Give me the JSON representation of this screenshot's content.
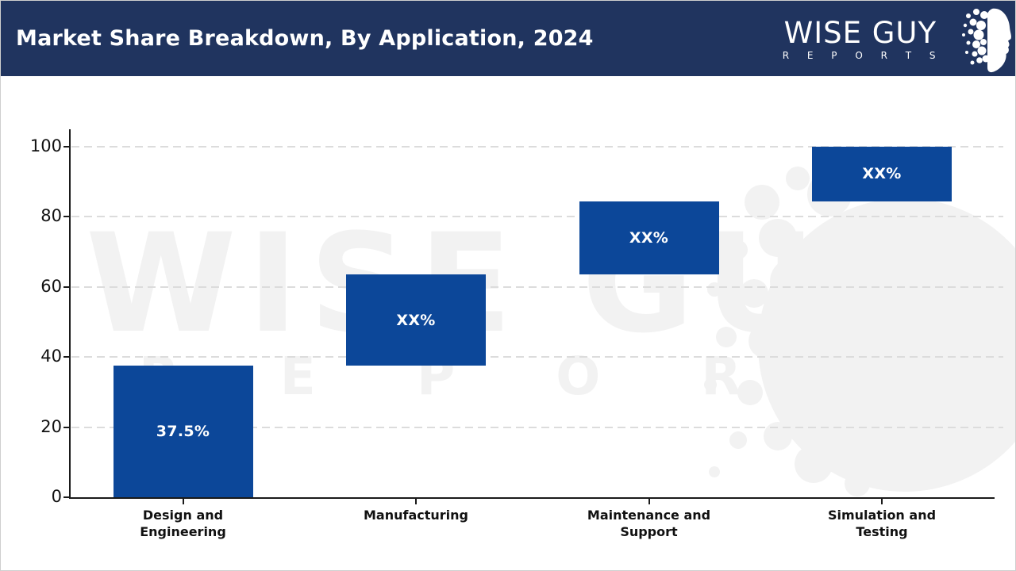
{
  "header": {
    "title": "Market Share Breakdown, By Application, 2024",
    "bg_color": "#20345f",
    "logo": {
      "line1": "WISE GUY",
      "line2": "R E P O R T S"
    }
  },
  "watermark": {
    "line1": "WISE GUY",
    "line2": "R E P O R T S"
  },
  "chart_data": {
    "type": "bar",
    "subtype": "waterfall",
    "title": "Market Share Breakdown, By Application, 2024",
    "xlabel": "",
    "ylabel": "",
    "ylim": [
      0,
      106
    ],
    "yticks": [
      0,
      20,
      40,
      60,
      80,
      100
    ],
    "grid": "horizontal-dashed",
    "legend": "none",
    "bar_color": "#0c4799",
    "bar_label_color": "#ffffff",
    "gridline_color": "#dcdcdc",
    "categories": [
      {
        "label_lines": [
          "Design and",
          "Engineering"
        ]
      },
      {
        "label_lines": [
          "Manufacturing"
        ]
      },
      {
        "label_lines": [
          "Maintenance and",
          "Support"
        ]
      },
      {
        "label_lines": [
          "Simulation and",
          "Testing"
        ]
      }
    ],
    "series": [
      {
        "name": "Market Share",
        "segments": [
          {
            "start": 0,
            "end": 37.5,
            "label": "37.5%"
          },
          {
            "start": 37.5,
            "end": 63.5,
            "label": "XX%"
          },
          {
            "start": 63.5,
            "end": 84.5,
            "label": "XX%"
          },
          {
            "start": 84.5,
            "end": 100,
            "label": "XX%"
          }
        ]
      }
    ]
  }
}
